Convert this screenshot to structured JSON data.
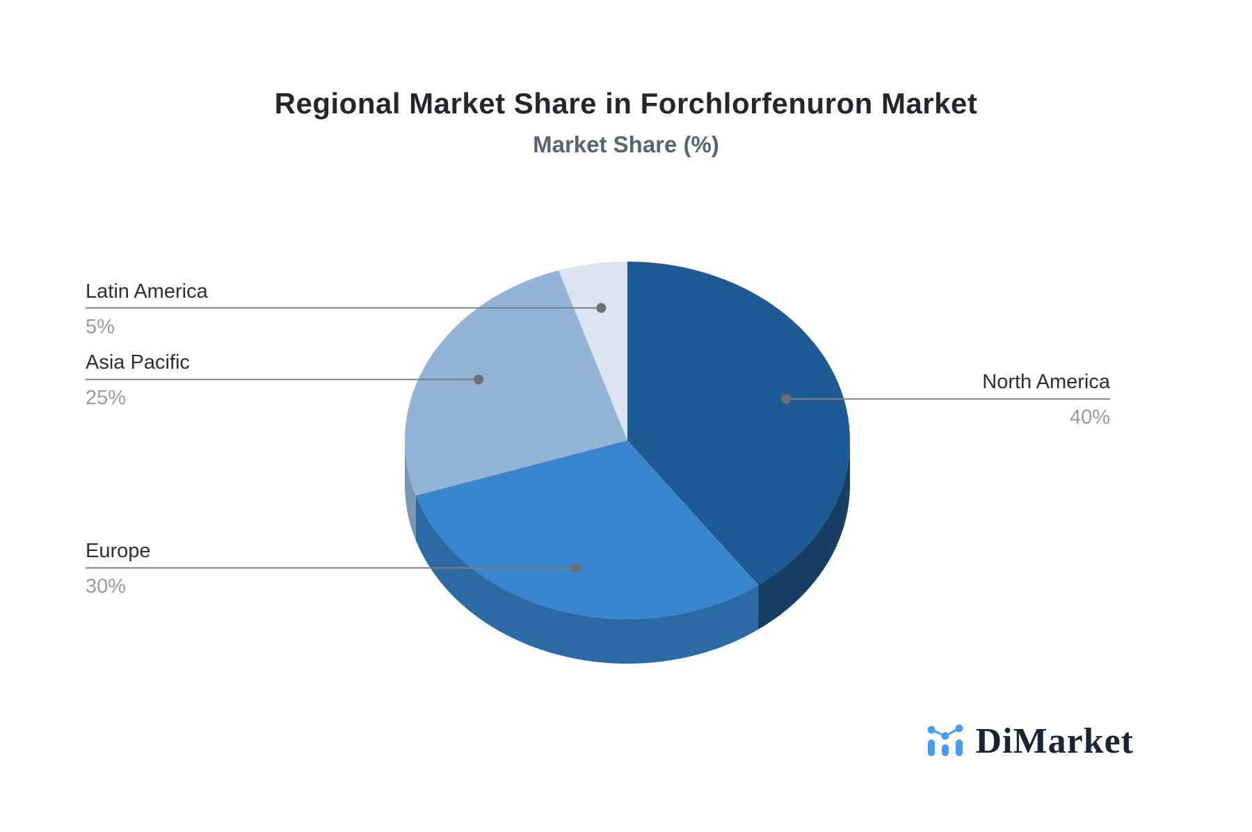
{
  "header": {
    "title": "Regional Market Share in Forchlorfenuron Market",
    "subtitle": "Market Share (%)"
  },
  "chart_data": {
    "type": "pie",
    "projection": "3d",
    "title": "Regional Market Share in Forchlorfenuron Market",
    "subtitle": "Market Share (%)",
    "unit": "%",
    "start_angle_deg": 0,
    "direction": "clockwise",
    "legend_position": "none",
    "data_labels": "leader-lines",
    "categories": [
      "North America",
      "Europe",
      "Asia Pacific",
      "Latin America"
    ],
    "values": [
      40,
      30,
      25,
      5
    ],
    "slices": [
      {
        "label": "North America",
        "value": 40,
        "value_label": "40%",
        "color": "#1e5a94",
        "side_color": "#173f66"
      },
      {
        "label": "Europe",
        "value": 30,
        "value_label": "30%",
        "color": "#3a86ce",
        "side_color": "#2d6aa3"
      },
      {
        "label": "Asia Pacific",
        "value": 25,
        "value_label": "25%",
        "color": "#93b3d7",
        "side_color": "#7b96b2"
      },
      {
        "label": "Latin America",
        "value": 5,
        "value_label": "5%",
        "color": "#dce4f0",
        "side_color": "#c3d0e2"
      }
    ]
  },
  "logo": {
    "text": "DiMarket"
  },
  "colors": {
    "background": "#ffffff",
    "title": "#23262a",
    "subtitle": "#5a636e",
    "label_text": "#2e2e2e",
    "value_text": "#9b9b9b",
    "leader_line": "#7f7f7f",
    "leader_dot": "#6f6f6f",
    "logo_text": "#1a2433",
    "logo_icon": "#469bf2"
  }
}
